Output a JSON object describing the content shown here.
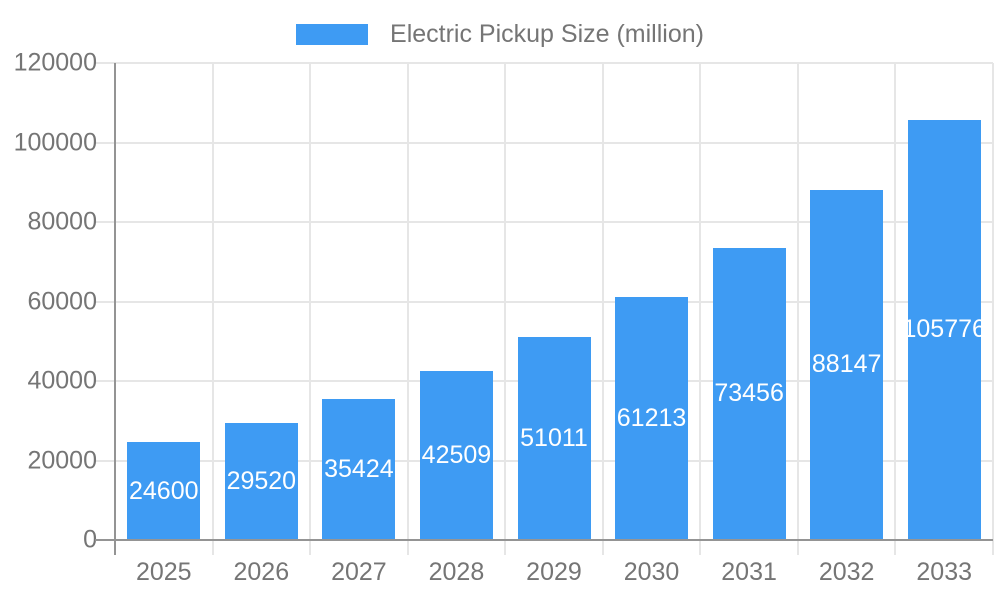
{
  "chart": {
    "legend_label": "Electric Pickup Size (million)",
    "colors": {
      "bar": "#3E9BF3",
      "gridline": "#E6E6E6",
      "axis": "#949494",
      "tick_text": "#757575",
      "value_text": "#FFFFFF",
      "background": "#FFFFFF"
    }
  },
  "chart_data": {
    "type": "bar",
    "title": "Electric Pickup Size (million)",
    "categories": [
      "2025",
      "2026",
      "2027",
      "2028",
      "2029",
      "2030",
      "2031",
      "2032",
      "2033"
    ],
    "values": [
      24600,
      29520,
      35424,
      42509,
      51011,
      61213,
      73456,
      88147,
      105776
    ],
    "xlabel": "",
    "ylabel": "",
    "ylim": [
      0,
      120000
    ],
    "ytick_labels": [
      "0",
      "20000",
      "40000",
      "60000",
      "80000",
      "100000",
      "120000"
    ],
    "grid": true,
    "legend_position": "top",
    "value_label_position": "inside-center"
  }
}
